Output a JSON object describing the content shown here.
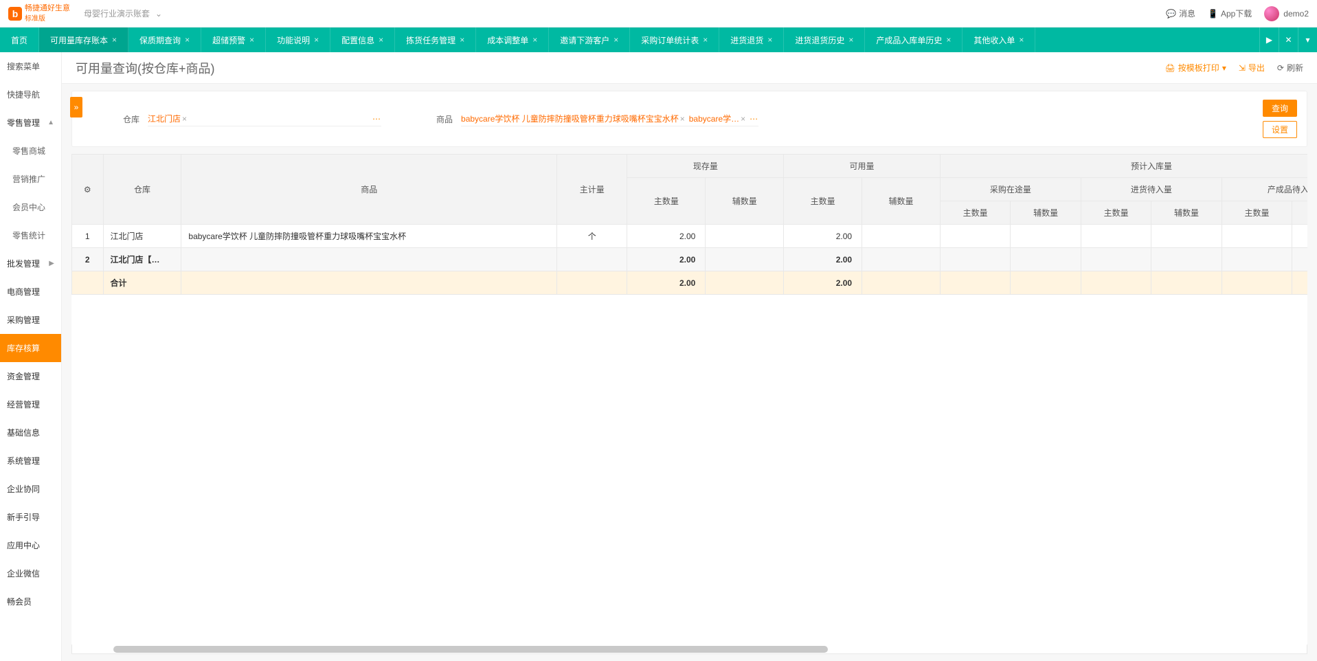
{
  "header": {
    "brand_main": "畅捷通好生意",
    "brand_sub": "标准版",
    "org_name": "母婴行业演示账套",
    "msg_label": "消息",
    "app_label": "App下载",
    "user_name": "demo2"
  },
  "tabs": {
    "items": [
      {
        "label": "首页",
        "closable": false
      },
      {
        "label": "可用量库存账本",
        "closable": true,
        "active": true
      },
      {
        "label": "保质期查询",
        "closable": true
      },
      {
        "label": "超储预警",
        "closable": true
      },
      {
        "label": "功能说明",
        "closable": true
      },
      {
        "label": "配置信息",
        "closable": true
      },
      {
        "label": "拣货任务管理",
        "closable": true
      },
      {
        "label": "成本调整单",
        "closable": true
      },
      {
        "label": "邀请下游客户",
        "closable": true
      },
      {
        "label": "采购订单统计表",
        "closable": true
      },
      {
        "label": "进货退货",
        "closable": true
      },
      {
        "label": "进货退货历史",
        "closable": true
      },
      {
        "label": "产成品入库单历史",
        "closable": true
      },
      {
        "label": "其他收入单",
        "closable": true
      }
    ]
  },
  "sidebar": {
    "search": "搜索菜单",
    "quicknav": "快捷导航",
    "groups": [
      {
        "label": "零售管理",
        "expanded": true,
        "children": [
          "零售商城",
          "营销推广",
          "会员中心",
          "零售统计"
        ]
      },
      {
        "label": "批发管理",
        "expanded": false
      },
      {
        "label": "电商管理"
      },
      {
        "label": "采购管理"
      },
      {
        "label": "库存核算",
        "active": true
      },
      {
        "label": "资金管理"
      },
      {
        "label": "经营管理"
      },
      {
        "label": "基础信息"
      },
      {
        "label": "系统管理"
      },
      {
        "label": "企业协同"
      },
      {
        "label": "新手引导"
      },
      {
        "label": "应用中心"
      },
      {
        "label": "企业微信"
      },
      {
        "label": "畅会员"
      }
    ]
  },
  "page": {
    "title": "可用量查询(按仓库+商品)",
    "actions": {
      "print": "按模板打印",
      "export": "导出",
      "refresh": "刷新"
    }
  },
  "filter": {
    "warehouse_label": "仓库",
    "warehouse_tags": [
      "江北门店"
    ],
    "product_label": "商品",
    "product_tags": [
      "babycare学饮杯 儿童防摔防撞吸管杯重力球吸嘴杯宝宝水杯",
      "babycare学…"
    ],
    "query_btn": "查询",
    "setting_btn": "设置"
  },
  "table": {
    "headers": {
      "gear": "⚙",
      "warehouse": "仓库",
      "product": "商品",
      "main_unit": "主计量",
      "stock_group": "现存量",
      "avail_group": "可用量",
      "expected_group": "预计入库量",
      "purchase_group": "采购在途量",
      "inbound_group": "进货待入量",
      "finished_group": "产成品待入量",
      "main_qty": "主数量",
      "aux_qty": "辅数量"
    },
    "rows": [
      {
        "idx": "1",
        "warehouse": "江北门店",
        "product": "babycare学饮杯 儿童防摔防撞吸管杯重力球吸嘴杯宝宝水杯",
        "unit": "个",
        "stock_main": "2.00",
        "avail_main": "2.00"
      },
      {
        "idx": "2",
        "warehouse": "江北门店【…",
        "product": "",
        "unit": "",
        "stock_main": "2.00",
        "avail_main": "2.00",
        "subtotal": true
      }
    ],
    "footer": {
      "label": "合计",
      "stock_main": "2.00",
      "avail_main": "2.00"
    }
  }
}
